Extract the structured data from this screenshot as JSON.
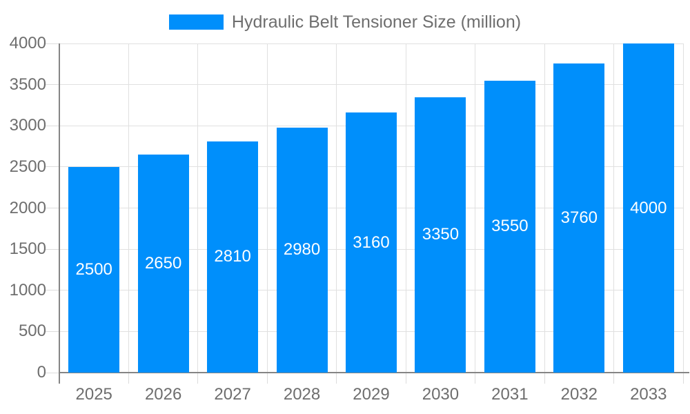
{
  "chart_data": {
    "type": "bar",
    "title": "Hydraulic Belt Tensioner Size (million)",
    "categories": [
      "2025",
      "2026",
      "2027",
      "2028",
      "2029",
      "2030",
      "2031",
      "2032",
      "2033"
    ],
    "series": [
      {
        "name": "Hydraulic Belt Tensioner Size (million)",
        "values": [
          2500,
          2650,
          2810,
          2980,
          3160,
          3350,
          3550,
          3760,
          4000
        ]
      }
    ],
    "xlabel": "",
    "ylabel": "",
    "ylim": [
      0,
      4000
    ],
    "ytick_interval": 500,
    "yticks": [
      0,
      500,
      1000,
      1500,
      2000,
      2500,
      3000,
      3500,
      4000
    ],
    "grid": true,
    "legend_position": "top",
    "value_labels": "inside-center",
    "colors": {
      "bar": "#008FFB",
      "grid": "#e0e0e0",
      "tick": "#dcdcdc",
      "axis_line": "#858585",
      "axis_label": "#6e6e6e",
      "legend_label": "#6e6e6e",
      "value_label": "#ffffff"
    }
  }
}
